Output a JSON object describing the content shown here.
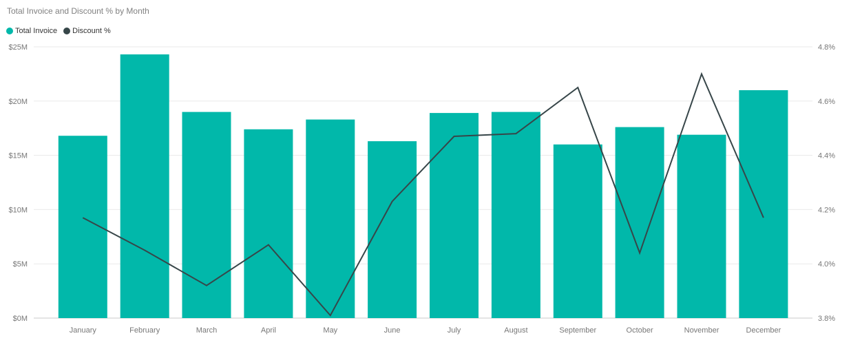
{
  "title": "Total Invoice and Discount % by Month",
  "chart_data": {
    "type": "combo-bar-line",
    "title": "Total Invoice and Discount % by Month",
    "categories": [
      "January",
      "February",
      "March",
      "April",
      "May",
      "June",
      "July",
      "August",
      "September",
      "October",
      "November",
      "December"
    ],
    "series": [
      {
        "name": "Total Invoice",
        "type": "bar",
        "axis": "left",
        "unit": "$M",
        "color": "#01B8AA",
        "values": [
          16.8,
          24.3,
          19.0,
          17.4,
          18.3,
          16.3,
          18.9,
          19.0,
          16.0,
          17.6,
          16.9,
          21.0
        ]
      },
      {
        "name": "Discount %",
        "type": "line",
        "axis": "right",
        "unit": "%",
        "color": "#374649",
        "values": [
          4.17,
          4.05,
          3.92,
          4.07,
          3.81,
          4.23,
          4.47,
          4.48,
          4.65,
          4.04,
          4.7,
          4.17
        ]
      }
    ],
    "left_axis": {
      "min": 0,
      "max": 25,
      "tick_values": [
        0,
        5,
        10,
        15,
        20,
        25
      ],
      "tick_labels": [
        "$0M",
        "$5M",
        "$10M",
        "$15M",
        "$20M",
        "$25M"
      ]
    },
    "right_axis": {
      "min": 3.8,
      "max": 4.8,
      "tick_values": [
        3.8,
        4.0,
        4.2,
        4.4,
        4.6,
        4.8
      ],
      "tick_labels": [
        "3.8%",
        "4.0%",
        "4.2%",
        "4.4%",
        "4.6%",
        "4.8%"
      ]
    },
    "grid": true,
    "legend_position": "top-left"
  }
}
